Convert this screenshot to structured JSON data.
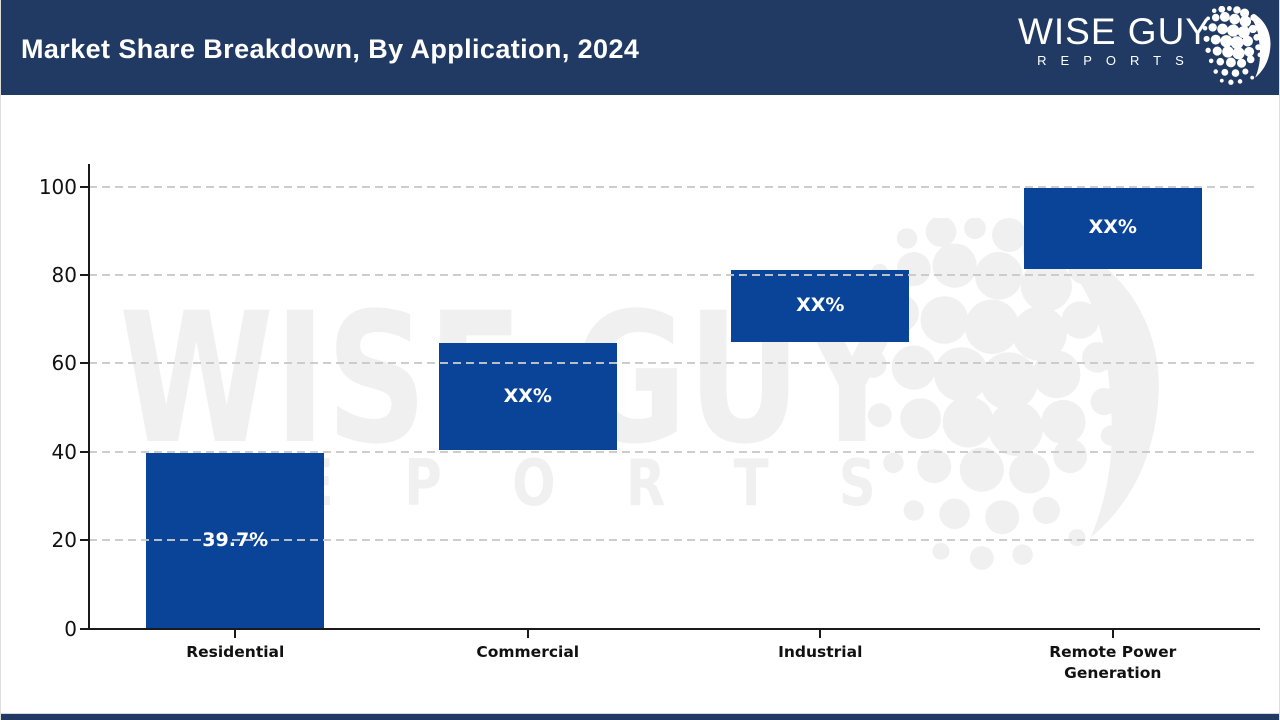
{
  "header": {
    "title": "Market Share Breakdown, By Application, 2024",
    "logo": {
      "wordmark": "WISE GUY",
      "sub": "REPORTS"
    }
  },
  "watermark": {
    "line1": "WISE GUY",
    "line2": "REPORTS"
  },
  "colors": {
    "header_bg": "#203a64",
    "footer_bg": "#203a64",
    "bar": "#0a4499",
    "bar_label": "#ffffff",
    "axis": "#1a1a1a",
    "grid": "#c9c9c9",
    "watermark": "#f0f0f1"
  },
  "chart_data": {
    "type": "bar",
    "subtype": "floating-segment-share",
    "title": "Market Share Breakdown, By Application, 2024",
    "categories": [
      "Residential",
      "Commercial",
      "Industrial",
      "Remote Power Generation"
    ],
    "series": [
      {
        "category": "Residential",
        "start": 0,
        "end": 39.7,
        "label": "39.7%"
      },
      {
        "category": "Commercial",
        "start": 40.3,
        "end": 64.6,
        "label": "XX%"
      },
      {
        "category": "Industrial",
        "start": 64.9,
        "end": 81.0,
        "label": "XX%"
      },
      {
        "category": "Remote Power Generation",
        "start": 81.3,
        "end": 99.7,
        "label": "XX%"
      }
    ],
    "xlabel": "",
    "ylabel": "",
    "ylim": [
      0,
      100
    ],
    "yticks": [
      0,
      20,
      40,
      60,
      80,
      100
    ],
    "grid": {
      "axis": "y",
      "style": "dashed"
    },
    "legend": "none",
    "bar_color": "#0a4499"
  }
}
